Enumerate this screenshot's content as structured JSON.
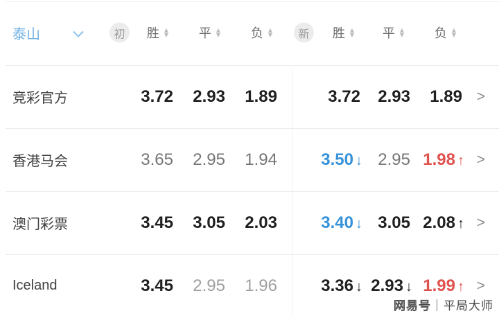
{
  "header": {
    "team": "泰山",
    "badge_initial": "初",
    "badge_new": "新",
    "columns_initial": [
      "胜",
      "平",
      "负"
    ],
    "columns_new": [
      "胜",
      "平",
      "负"
    ]
  },
  "icons": {
    "dropdown": "chevron-down",
    "sort_up": "▲",
    "sort_down": "▼",
    "row_link": ">"
  },
  "colors": {
    "odds_down_blue": "#3793d9",
    "odds_up_red": "#e0524e",
    "team_blue": "#6fb0e4"
  },
  "rows": [
    {
      "name": "竞彩官方",
      "initial": [
        {
          "value": "3.72"
        },
        {
          "value": "2.93"
        },
        {
          "value": "1.89"
        }
      ],
      "new": [
        {
          "value": "3.72",
          "arrow": ""
        },
        {
          "value": "2.93",
          "arrow": ""
        },
        {
          "value": "1.89",
          "arrow": ""
        }
      ]
    },
    {
      "name": "香港马会",
      "initial": [
        {
          "value": "3.65"
        },
        {
          "value": "2.95"
        },
        {
          "value": "1.94"
        }
      ],
      "new": [
        {
          "value": "3.50",
          "arrow": "↓"
        },
        {
          "value": "2.95",
          "arrow": ""
        },
        {
          "value": "1.98",
          "arrow": "↑"
        }
      ]
    },
    {
      "name": "澳门彩票",
      "initial": [
        {
          "value": "3.45"
        },
        {
          "value": "3.05"
        },
        {
          "value": "2.03"
        }
      ],
      "new": [
        {
          "value": "3.40",
          "arrow": "↓"
        },
        {
          "value": "3.05",
          "arrow": ""
        },
        {
          "value": "2.08",
          "arrow": "↑"
        }
      ]
    },
    {
      "name": "Iceland",
      "initial": [
        {
          "value": "3.45"
        },
        {
          "value": "2.95"
        },
        {
          "value": "1.96"
        }
      ],
      "new": [
        {
          "value": "3.36",
          "arrow": "↓"
        },
        {
          "value": "2.93",
          "arrow": "↓"
        },
        {
          "value": "1.99",
          "arrow": "↑"
        }
      ]
    }
  ],
  "watermark": {
    "brand": "网易号",
    "separator": "｜",
    "author": "平局大师"
  }
}
